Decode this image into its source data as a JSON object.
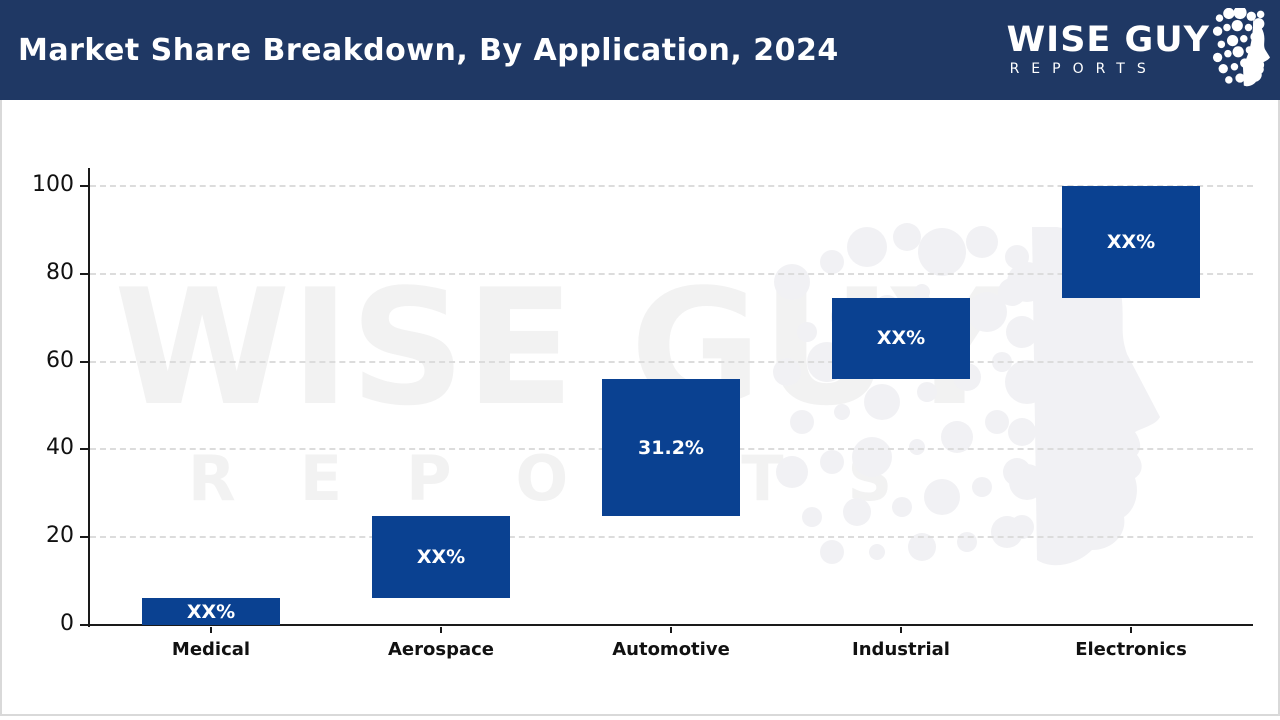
{
  "header": {
    "title": "Market Share Breakdown, By Application, 2024",
    "logo": {
      "line1": "WISE GUY",
      "line2": "REPORTS"
    }
  },
  "watermark": {
    "line1": "WISE GUY",
    "line2": "REPORTS"
  },
  "colors": {
    "header_bg": "#1f3864",
    "bar": "#0a4191",
    "bar_label": "#ffffff",
    "axis": "#1a1a1a",
    "grid": "#dcdcdc",
    "watermark": "#f2f2f2",
    "canvas_border": "#d9d9d9"
  },
  "chart_data": {
    "type": "bar",
    "subtype": "floating-waterfall",
    "title": "Market Share Breakdown, By Application, 2024",
    "categories": [
      "Medical",
      "Aerospace",
      "Automotive",
      "Industrial",
      "Electronics"
    ],
    "series": [
      {
        "name": "Market Share",
        "segments": [
          {
            "category": "Medical",
            "start": 0,
            "end": 6.1,
            "value": 6.1,
            "label": "XX%"
          },
          {
            "category": "Aerospace",
            "start": 6.1,
            "end": 24.8,
            "value": 18.7,
            "label": "XX%"
          },
          {
            "category": "Automotive",
            "start": 24.8,
            "end": 56.0,
            "value": 31.2,
            "label": "31.2%"
          },
          {
            "category": "Industrial",
            "start": 56.0,
            "end": 74.6,
            "value": 18.6,
            "label": "XX%"
          },
          {
            "category": "Electronics",
            "start": 74.6,
            "end": 100,
            "value": 25.4,
            "label": "XX%"
          }
        ]
      }
    ],
    "ylim": [
      0,
      100
    ],
    "yticks": [
      0,
      20,
      40,
      60,
      80,
      100
    ],
    "xlabel": "",
    "ylabel": "",
    "grid": "horizontal-dashed",
    "legend": "none"
  }
}
